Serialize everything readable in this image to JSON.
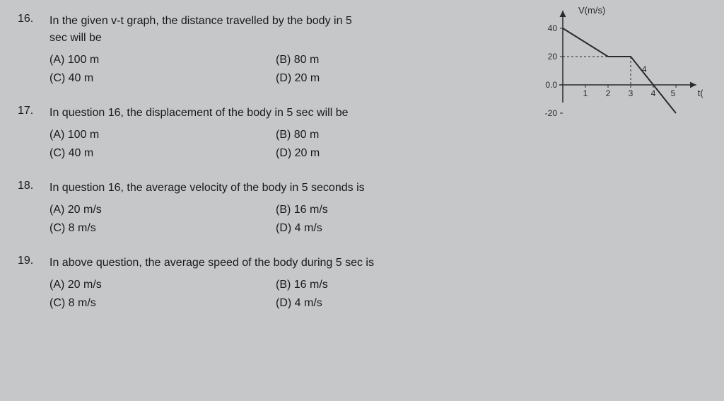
{
  "questions": [
    {
      "num": "16.",
      "text_line1": "In the given v-t graph, the distance travelled by the body in 5",
      "text_line2": "sec will be",
      "opts": [
        "(A) 100 m",
        "(B) 80 m",
        "(C) 40 m",
        "(D) 20 m"
      ]
    },
    {
      "num": "17.",
      "text": "In question 16, the displacement of the body in 5 sec will be",
      "opts": [
        "(A) 100 m",
        "(B) 80 m",
        "(C) 40 m",
        "(D) 20 m"
      ]
    },
    {
      "num": "18.",
      "text": "In question 16, the average velocity of the body in 5 seconds is",
      "opts": [
        "(A) 20 m/s",
        "(B) 16 m/s",
        "(C) 8 m/s",
        "(D) 4 m/s"
      ]
    },
    {
      "num": "19.",
      "text": "In above question, the average speed of the body during 5 sec is",
      "opts": [
        "(A) 20 m/s",
        "(B) 16 m/s",
        "(C) 8 m/s",
        "(D) 4 m/s"
      ]
    }
  ],
  "graph": {
    "y_label": "V(m/s)",
    "x_label": "t(s)",
    "y_ticks": [
      "40",
      "20",
      "0.0",
      "-20"
    ],
    "y_vals": [
      40,
      20,
      0,
      -20
    ],
    "x_ticks": [
      "1",
      "2",
      "3",
      "4",
      "5"
    ],
    "x_vals": [
      1,
      2,
      3,
      4,
      5
    ],
    "line_points": [
      [
        0,
        40
      ],
      [
        2,
        20
      ],
      [
        3,
        20
      ],
      [
        5,
        -20
      ]
    ],
    "dash1": [
      [
        0,
        20
      ],
      [
        2,
        20
      ]
    ],
    "dash2": [
      [
        3,
        20
      ],
      [
        3,
        0
      ]
    ],
    "area4_label": "4",
    "axis_color": "#2a2a2a",
    "line_color": "#2a2a2a",
    "tick_font": 12,
    "label_font": 13
  }
}
